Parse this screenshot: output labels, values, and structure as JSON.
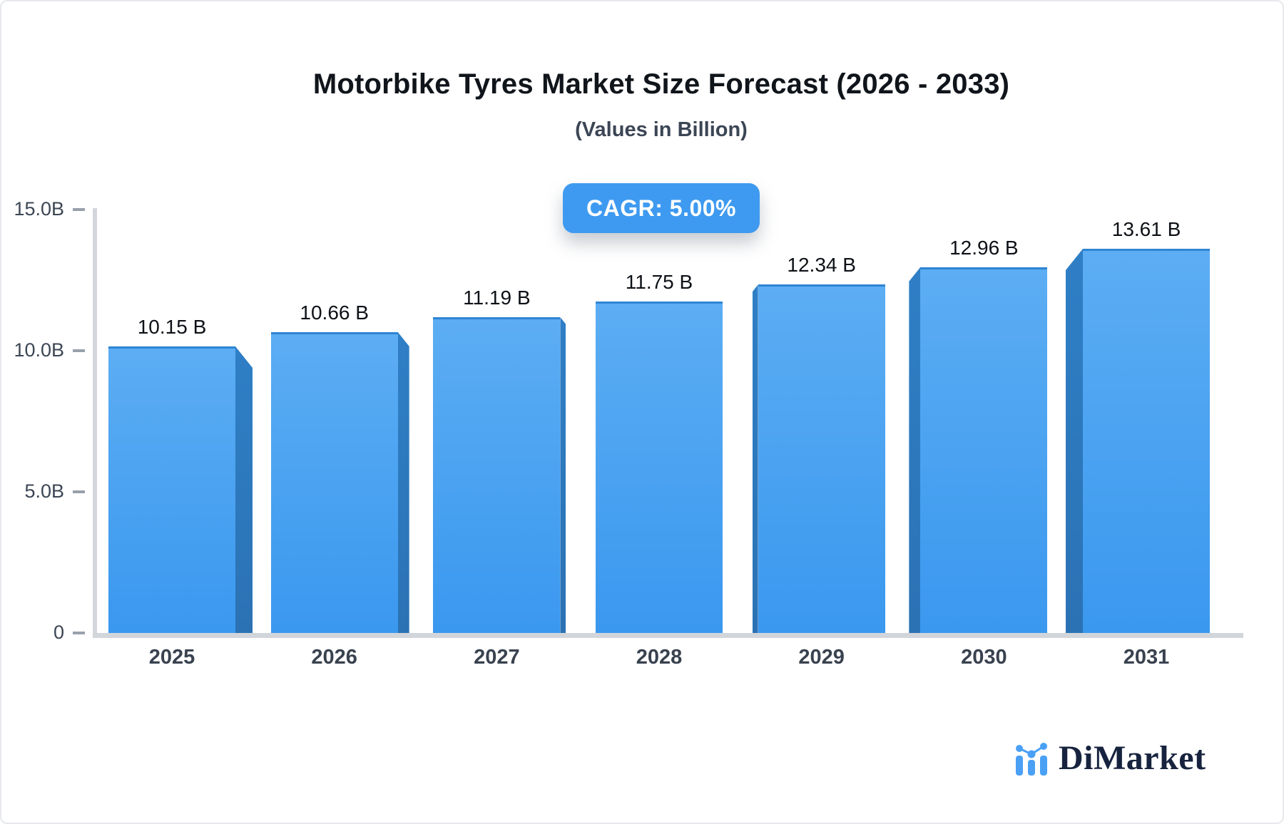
{
  "chart_data": {
    "type": "bar",
    "title": "Motorbike Tyres Market Size Forecast (2026 - 2033)",
    "subtitle": "(Values in Billion)",
    "categories": [
      "2025",
      "2026",
      "2027",
      "2028",
      "2029",
      "2030",
      "2031"
    ],
    "values": [
      10.15,
      10.66,
      11.19,
      11.75,
      12.34,
      12.96,
      13.61
    ],
    "value_labels": [
      "10.15 B",
      "10.66 B",
      "11.19 B",
      "11.75 B",
      "12.34 B",
      "12.96 B",
      "13.61 B"
    ],
    "unit": "Billion",
    "ylim": [
      0,
      15
    ],
    "y_ticks": [
      {
        "value": 15,
        "label": "15.0B"
      },
      {
        "value": 10,
        "label": "10.0B"
      },
      {
        "value": 5,
        "label": "5.0B"
      },
      {
        "value": 0,
        "label": "0"
      }
    ],
    "grid": "off",
    "legend": "none",
    "bar_style": "3d-perspective-center-vanishing"
  },
  "badge": {
    "text": "CAGR: 5.00%"
  },
  "logo": {
    "text": "DiMarket"
  },
  "colors": {
    "bar_face_top": "#5cadf3",
    "bar_face_bottom": "#3a98ef",
    "bar_top_edge": "#2f84d3",
    "bar_side_top": "#2f7fc6",
    "bar_side": "#2b72b4",
    "badge_bg": "#3e9af0",
    "axis_line": "#d3d7dc",
    "tick": "#97a0ab",
    "text_dark": "#10151b",
    "logo_blue": "#4aa0f5",
    "logo_navy": "#17233e"
  }
}
